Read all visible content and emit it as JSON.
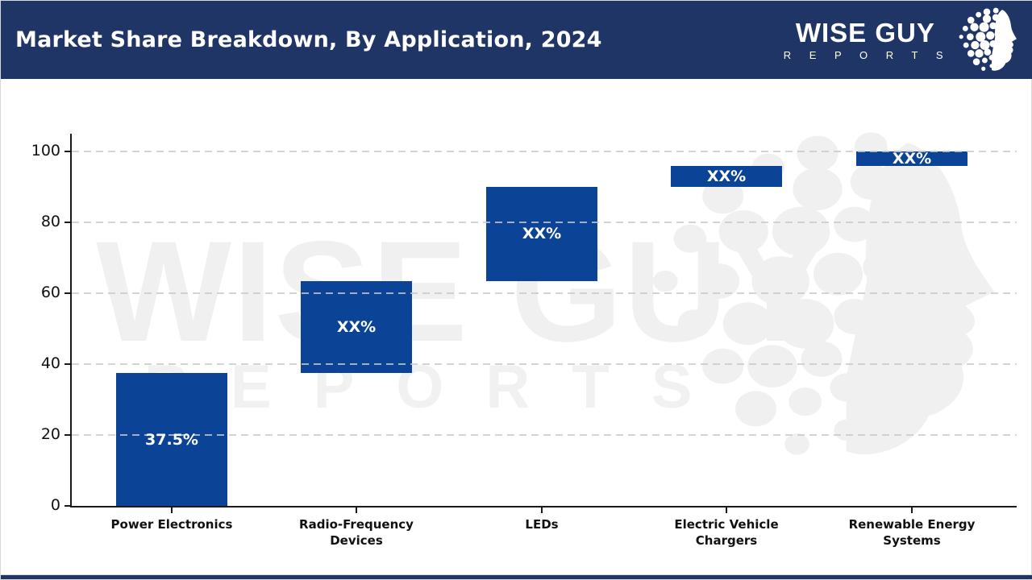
{
  "header": {
    "title": "Market Share Breakdown, By Application, 2024",
    "background_color": "#1f3566",
    "logo": {
      "line1": "WISE GUY",
      "line2": "R E P O R T S"
    }
  },
  "watermark": {
    "line1": "WISE GUY",
    "line2": "REPORTS"
  },
  "footer": {
    "color": "#1f3566"
  },
  "chart_data": {
    "type": "bar",
    "variant": "waterfall-floating-bars",
    "title": "Market Share Breakdown, By Application, 2024",
    "categories": [
      "Power Electronics",
      "Radio-Frequency Devices",
      "LEDs",
      "Electric Vehicle Chargers",
      "Renewable Energy Systems"
    ],
    "segments": [
      {
        "category": "Power Electronics",
        "start": 0,
        "end": 37.5,
        "value": 37.5,
        "label": "37.5%"
      },
      {
        "category": "Radio-Frequency Devices",
        "start": 37.5,
        "end": 63.5,
        "value": 26.0,
        "label": "XX%"
      },
      {
        "category": "LEDs",
        "start": 63.5,
        "end": 90,
        "value": 26.5,
        "label": "XX%"
      },
      {
        "category": "Electric Vehicle Chargers",
        "start": 90,
        "end": 96,
        "value": 6.0,
        "label": "XX%"
      },
      {
        "category": "Renewable Energy Systems",
        "start": 96,
        "end": 100,
        "value": 4.0,
        "label": "XX%"
      }
    ],
    "y_ticks": [
      0,
      20,
      40,
      60,
      80,
      100
    ],
    "ylim": [
      0,
      105
    ],
    "xlabel": "",
    "ylabel": "",
    "bar_color": "#0b4396",
    "bar_label_color": "#ffffff",
    "grid": "horizontal-dashed",
    "grid_color": "#c9c9c9",
    "legend": "none"
  }
}
